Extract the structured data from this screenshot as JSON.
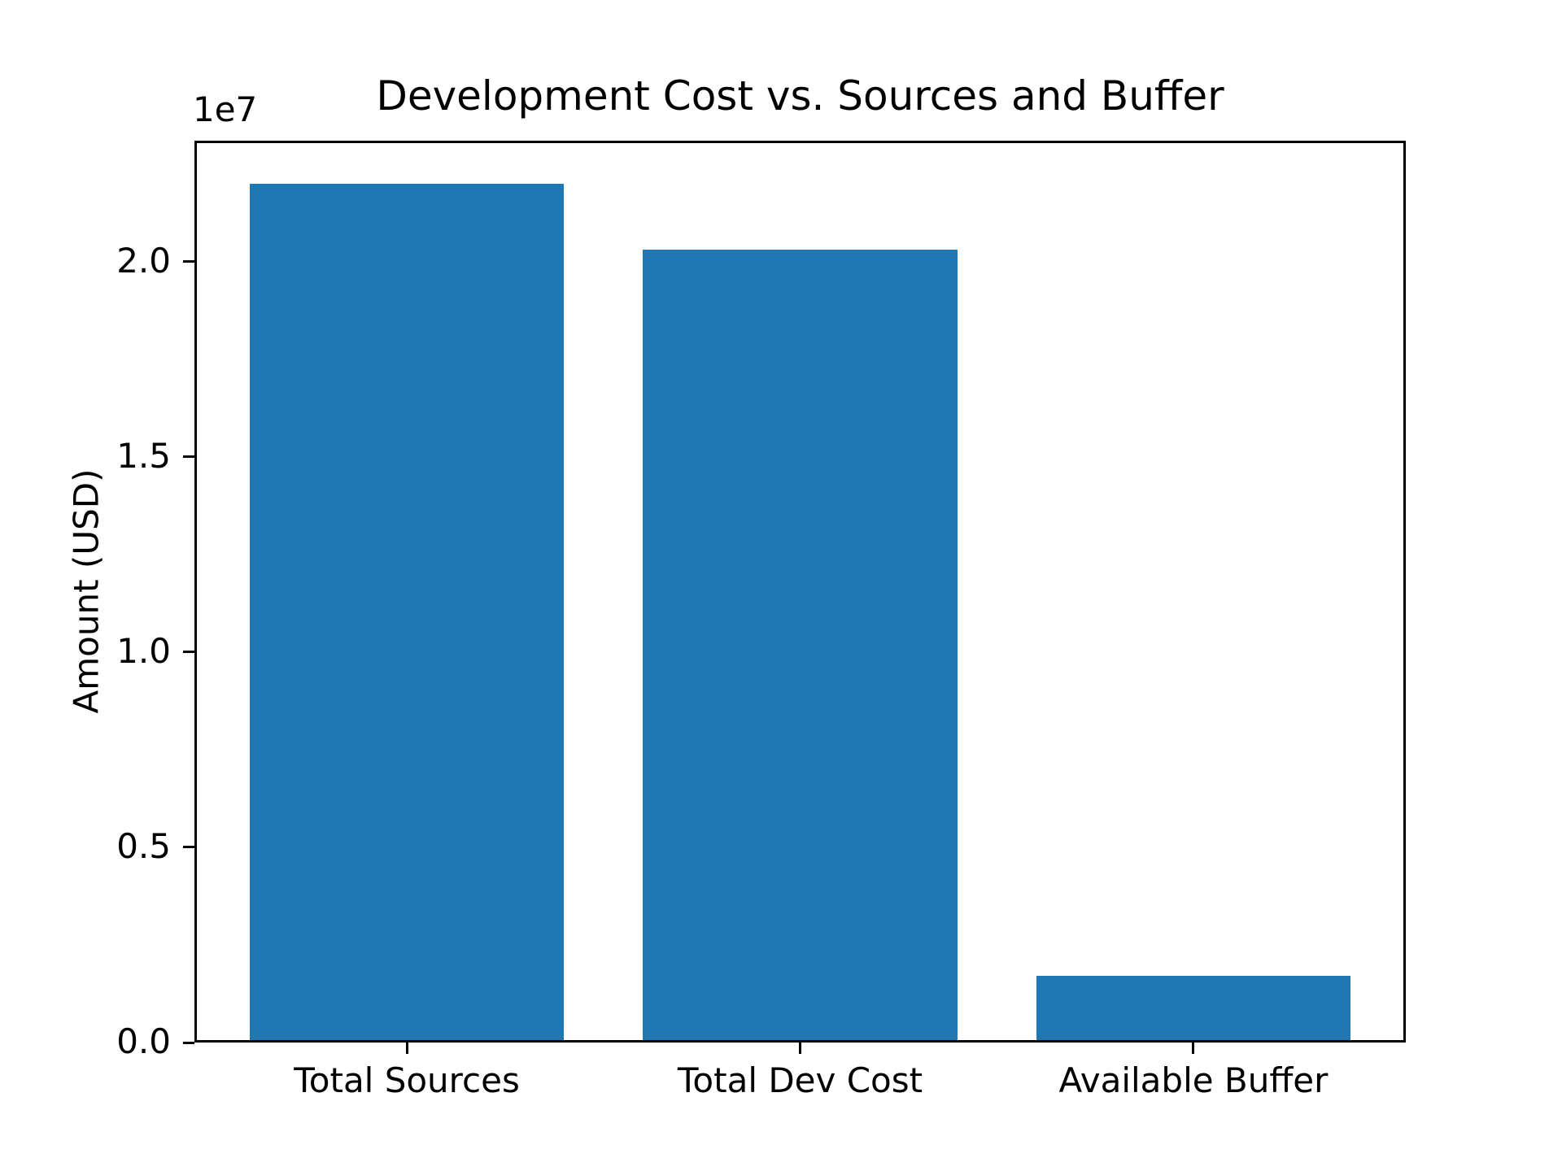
{
  "chart_data": {
    "type": "bar",
    "title": "Development Cost vs. Sources and Buffer",
    "categories": [
      "Total Sources",
      "Total Dev Cost",
      "Available Buffer"
    ],
    "values": [
      22000000,
      20300000,
      1700000
    ],
    "xlabel": "",
    "ylabel": "Amount (USD)",
    "ylim": [
      0,
      23100000
    ],
    "yticks": [
      0,
      5000000,
      10000000,
      15000000,
      20000000
    ],
    "ytick_labels": [
      "0.0",
      "0.5",
      "1.0",
      "1.5",
      "2.0"
    ],
    "offset_text": "1e7",
    "bar_color": "#1f77b4",
    "bar_width_fraction": 0.8,
    "grid": false,
    "legend": false,
    "colors": {
      "bar": "#1f77b4",
      "text": "#000000",
      "spine": "#000000",
      "background": "#ffffff"
    }
  }
}
